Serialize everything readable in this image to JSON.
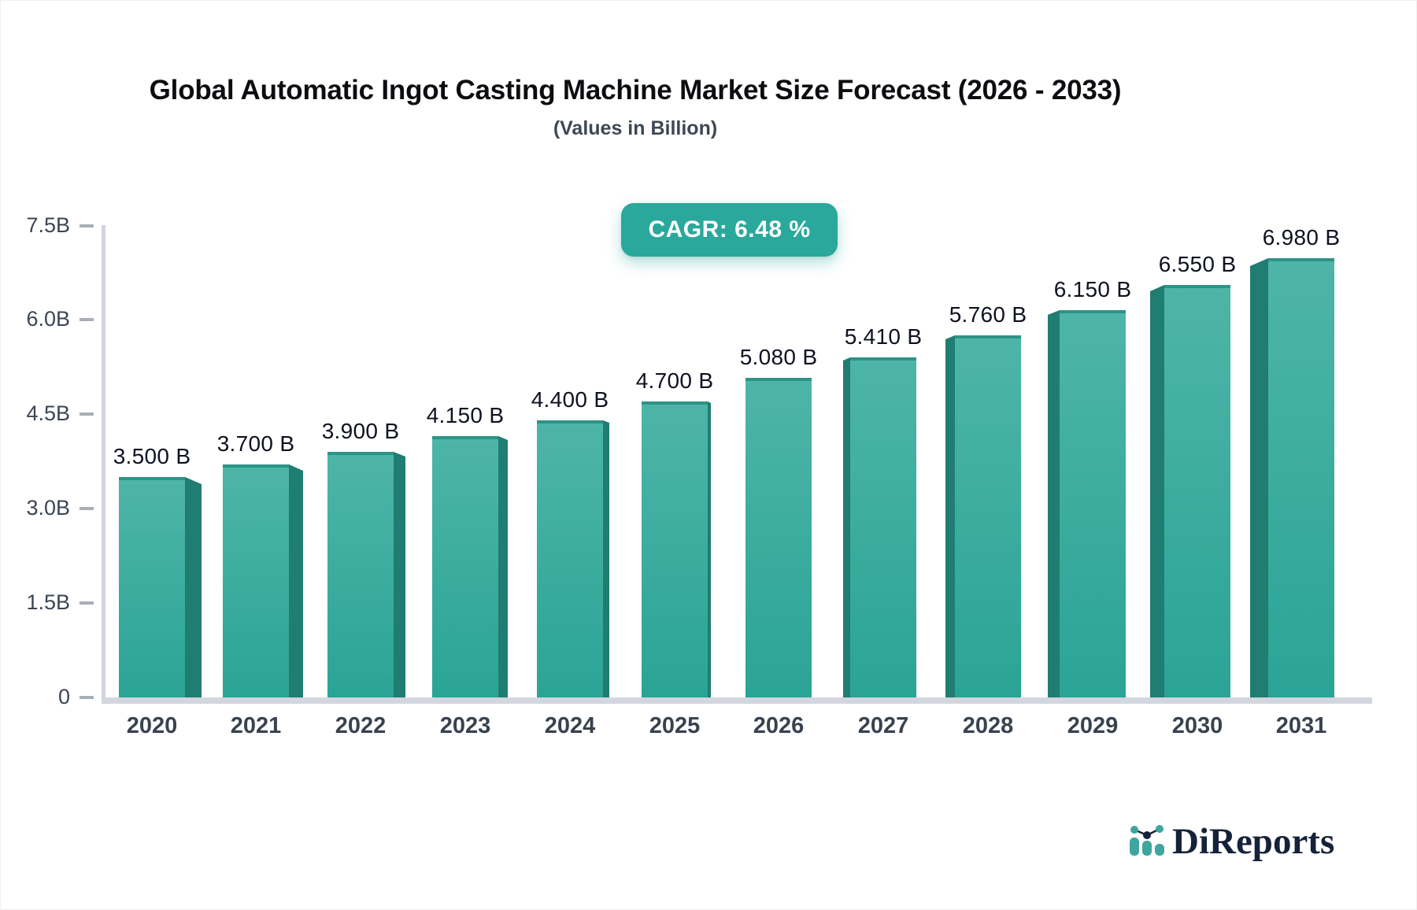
{
  "header": {
    "title": "Global Automatic Ingot Casting Machine Market Size Forecast (2026 - 2033)",
    "subtitle": "(Values in Billion)"
  },
  "badge": {
    "cagr_label": "CAGR: 6.48 %"
  },
  "chart_data": {
    "type": "bar",
    "title": "Global Automatic Ingot Casting Machine Market Size Forecast (2026 - 2033)",
    "subtitle": "(Values in Billion)",
    "cagr_percent": 6.48,
    "categories": [
      "2020",
      "2021",
      "2022",
      "2023",
      "2024",
      "2025",
      "2026",
      "2027",
      "2028",
      "2029",
      "2030",
      "2031"
    ],
    "values": [
      3.5,
      3.7,
      3.9,
      4.15,
      4.4,
      4.7,
      5.08,
      5.41,
      5.76,
      6.15,
      6.55,
      6.98
    ],
    "value_labels": [
      "3.500 B",
      "3.700 B",
      "3.900 B",
      "4.150 B",
      "4.400 B",
      "4.700 B",
      "5.080 B",
      "5.410 B",
      "5.760 B",
      "6.150 B",
      "6.550 B",
      "6.980 B"
    ],
    "xlabel": "",
    "ylabel": "",
    "ylim": [
      0,
      7.5
    ],
    "yticks": [
      7.5,
      6.0,
      4.5,
      3.0,
      1.5,
      0
    ],
    "ytick_labels": [
      "7.5B",
      "6.0B",
      "4.5B",
      "3.0B",
      "1.5B",
      "0"
    ],
    "grid": false,
    "legend": false,
    "bar_style": "3d-extruded, perspective vanishing at center bar (2026)"
  },
  "branding": {
    "logo_text": "DiReports",
    "logo_icon": "mini-bar-chart-with-dots-icon"
  },
  "colors": {
    "accent_teal": "#2aa89c",
    "bar_front_top": "#4eb5a8",
    "bar_front_bottom": "#2aa496",
    "bar_top_edge": "#2d9488",
    "bar_side": "#1f7d71",
    "axis_gray": "#d2d4dc",
    "tick_gray": "#a9aeb8",
    "text_dark": "#0c0d10",
    "text_axis": "#39424f",
    "logo_navy": "#15223a",
    "logo_teal": "#3ea69f",
    "background": "#ffffff"
  }
}
